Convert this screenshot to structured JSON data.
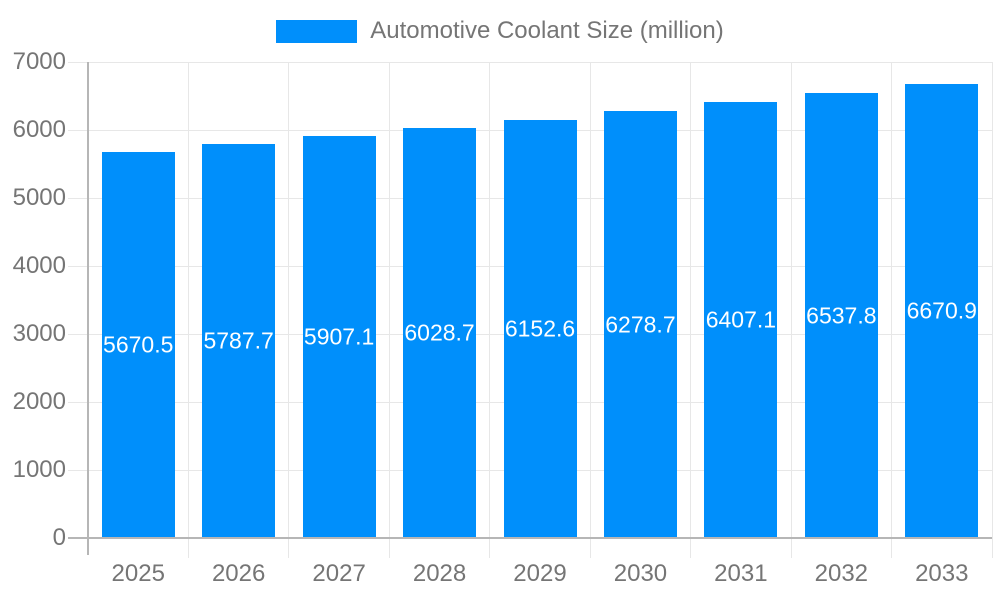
{
  "legend": {
    "label": "Automotive Coolant Size (million)"
  },
  "colors": {
    "bar": "#008ffb",
    "grid": "#e7e7e7",
    "axis": "#b6b6b6",
    "text": "#757575",
    "value_label": "#ffffff"
  },
  "chart_data": {
    "type": "bar",
    "title": "Automotive Coolant Size (million)",
    "categories": [
      "2025",
      "2026",
      "2027",
      "2028",
      "2029",
      "2030",
      "2031",
      "2032",
      "2033"
    ],
    "series": [
      {
        "name": "Automotive Coolant Size (million)",
        "values": [
          5670.5,
          5787.7,
          5907.1,
          6028.7,
          6152.6,
          6278.7,
          6407.1,
          6537.8,
          6670.9
        ]
      }
    ],
    "xlabel": "",
    "ylabel": "",
    "ylim": [
      0,
      7000
    ],
    "yticks": [
      0,
      1000,
      2000,
      3000,
      4000,
      5000,
      6000,
      7000
    ],
    "grid": true,
    "legend_position": "top",
    "value_labels": "inside-center"
  }
}
